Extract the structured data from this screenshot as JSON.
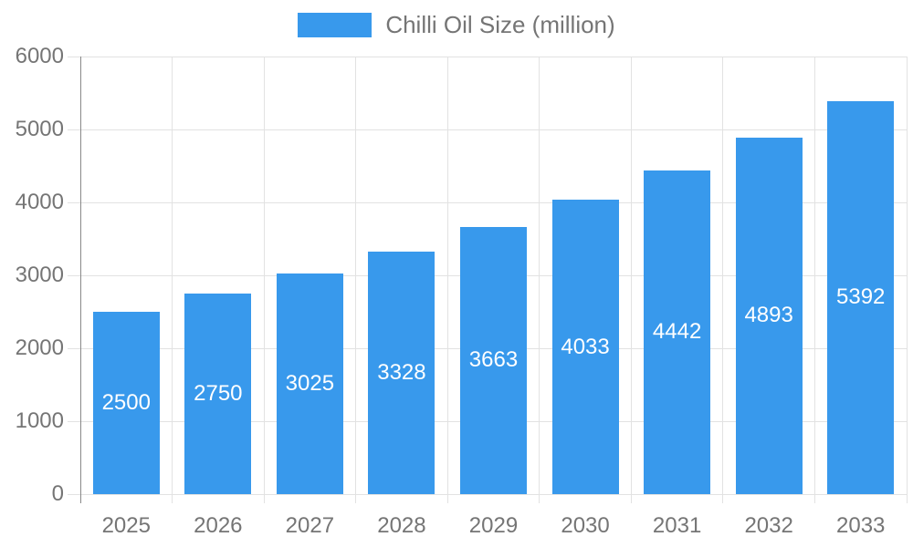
{
  "chart_data": {
    "type": "bar",
    "title": "Chilli Oil Size (million)",
    "categories": [
      "2025",
      "2026",
      "2027",
      "2028",
      "2029",
      "2030",
      "2031",
      "2032",
      "2033"
    ],
    "values": [
      2500,
      2750,
      3025,
      3328,
      3663,
      4033,
      4442,
      4893,
      5392
    ],
    "series_name": "Chilli Oil Size (million)",
    "xlabel": "",
    "ylabel": "",
    "ylim": [
      0,
      6000
    ],
    "yticks": [
      0,
      1000,
      2000,
      3000,
      4000,
      5000,
      6000
    ],
    "grid": true,
    "legend_position": "top-center",
    "value_labels": "inside-center"
  },
  "colors": {
    "bar": "#3899ec",
    "grid": "#e2e2e2",
    "axis": "#888888",
    "tick_text": "#757575",
    "legend_text": "#757575",
    "value_label": "#ffffff",
    "background": "#ffffff"
  }
}
